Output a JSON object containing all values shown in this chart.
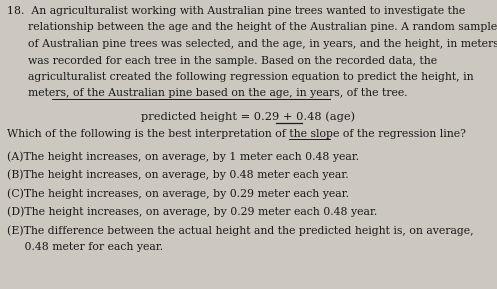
{
  "background_color": "#ccc8c0",
  "text_color": "#1a1a1a",
  "line1": "18.  An agriculturalist working with Australian pine trees wanted to investigate the",
  "line2": "      relationship between the age and the height of the Australian pine. A random sample",
  "line3": "      of Australian pine trees was selected, and the age, in years, and the height, in meters,",
  "line4": "      was recorded for each tree in the sample. Based on the recorded data, the",
  "line5": "      agriculturalist created the following regression equation to predict the height, in",
  "line6": "      meters, of the Australian pine based on the age, in years, of the tree.",
  "equation": "predicted height = 0.29 + 0.48 (age)",
  "question": "Which of the following is the best interpretation of the slope of the regression line?",
  "choiceA": "(A)The height increases, on average, by 1 meter each 0.48 year.",
  "choiceB": "(B)The height increases, on average, by 0.48 meter each year.",
  "choiceC": "(C)The height increases, on average, by 0.29 meter each year.",
  "choiceD": "(D)The height increases, on average, by 0.29 meter each 0.48 year.",
  "choiceE1": "(E)The difference between the actual height and the predicted height is, on average,",
  "choiceE2": "     0.48 meter for each year.",
  "body_fontsize": 7.8,
  "eq_fontsize": 8.2,
  "choice_fontsize": 7.8
}
